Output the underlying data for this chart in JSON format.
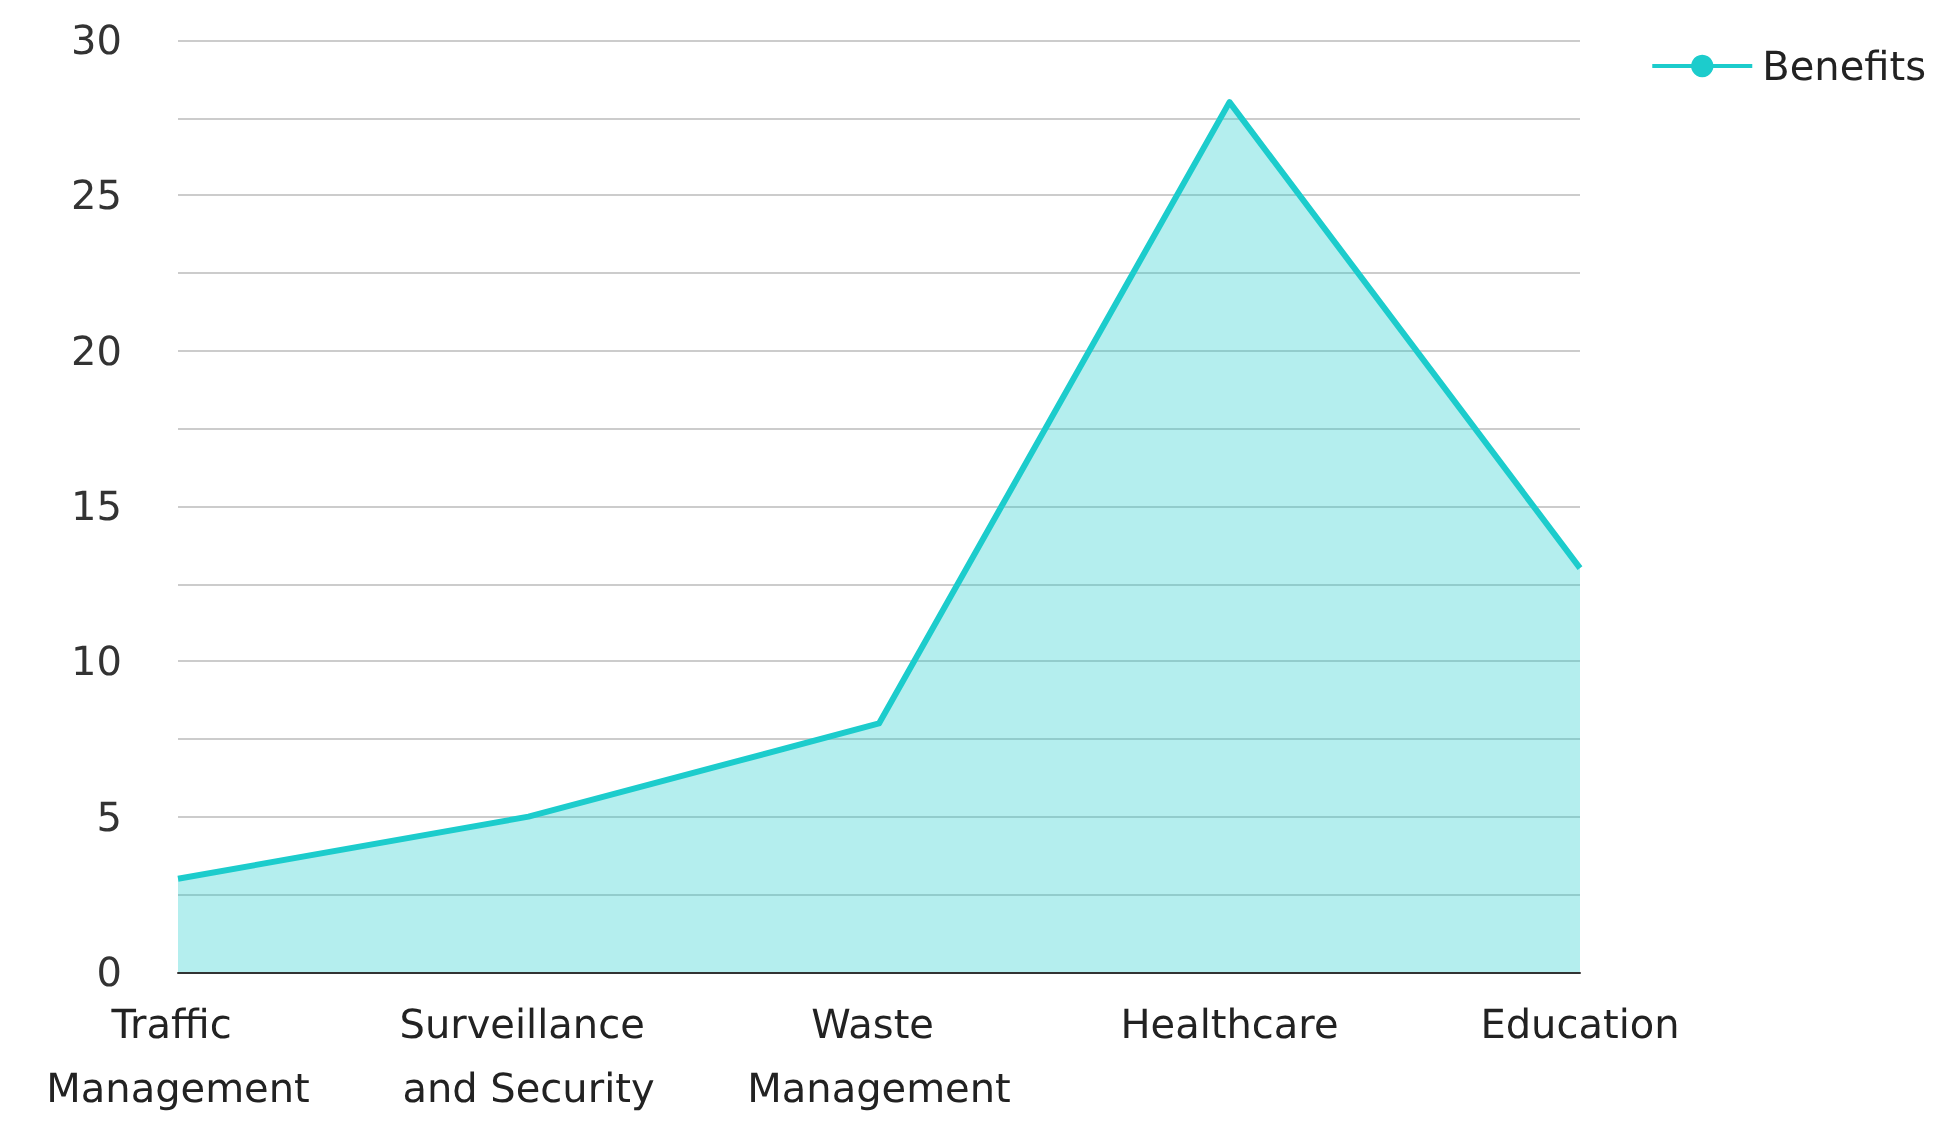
{
  "chart_data": {
    "type": "area",
    "categories": [
      "Traffic Management",
      "Surveillance and Security",
      "Waste Management",
      "Healthcare",
      "Education"
    ],
    "series": [
      {
        "name": "Benefits",
        "color": "#1ccccc",
        "values": [
          3,
          5,
          8,
          28,
          13
        ]
      }
    ],
    "ylim": [
      0,
      30
    ],
    "yticks": [
      0,
      {
        "value": 2.5,
        "label": null
      },
      5,
      {
        "value": 7.5,
        "label": null
      },
      10,
      {
        "value": 12.5,
        "label": null
      },
      15,
      {
        "value": 17.5,
        "label": null
      },
      20,
      {
        "value": 22.5,
        "label": null
      },
      25,
      {
        "value": 27.5,
        "label": null
      },
      30
    ],
    "grid": "y",
    "legend": "top right"
  }
}
